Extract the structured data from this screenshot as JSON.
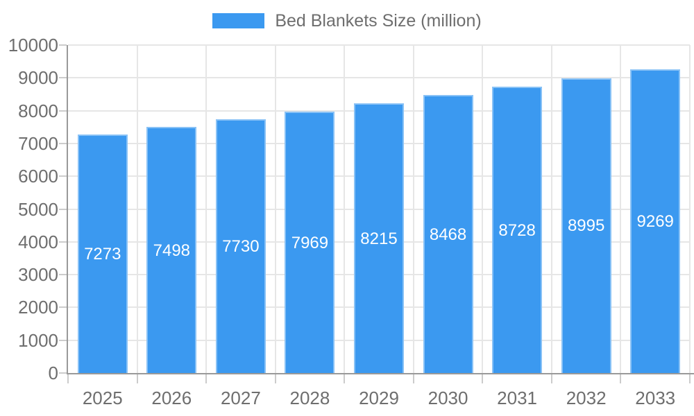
{
  "chart_data": {
    "type": "bar",
    "title": "Bed Blankets Size (million)",
    "categories": [
      "2025",
      "2026",
      "2027",
      "2028",
      "2029",
      "2030",
      "2031",
      "2032",
      "2033"
    ],
    "values": [
      7273,
      7498,
      7730,
      7969,
      8215,
      8468,
      8728,
      8995,
      9269
    ],
    "series_name": "Bed Blankets Size (million)",
    "xlabel": "",
    "ylabel": "",
    "ylim": [
      0,
      10000
    ],
    "y_tick_step": 1000,
    "y_tick_labels": [
      "0",
      "1000",
      "2000",
      "3000",
      "4000",
      "5000",
      "6000",
      "7000",
      "8000",
      "9000",
      "10000"
    ],
    "grid": true,
    "legend_position": "top-center",
    "value_label_position": "inside-center",
    "colors": {
      "bar_fill": "#3B99F0",
      "bar_border": "rgba(255,255,255,0.4)",
      "grid": "#E6E6E6",
      "axis": "#999999",
      "tick": "#CCCCCC",
      "axis_label": "#6E6E6E",
      "value_label": "#FFFFFF"
    }
  }
}
